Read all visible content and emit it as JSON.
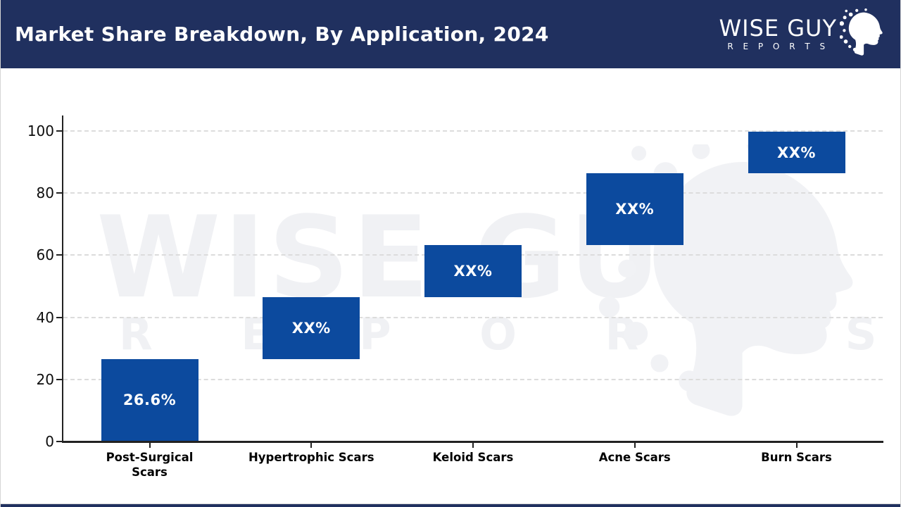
{
  "header": {
    "title": "Market Share Breakdown, By Application, 2024",
    "logo": {
      "brand_line1": "WISE GUY",
      "brand_line2": "R E P O R T S"
    }
  },
  "watermark": {
    "line1": "WISE GUY",
    "line2": "R E P O R T S"
  },
  "colors": {
    "header_bg": "#20305f",
    "bar": "#0c4a9e",
    "bar_label": "#ffffff",
    "gridline": "#dcdcdc",
    "axis": "#222222",
    "watermark": "#f0f1f4"
  },
  "chart_data": {
    "type": "bar",
    "subtype": "waterfall",
    "title": "Market Share Breakdown, By Application, 2024",
    "xlabel": "",
    "ylabel": "",
    "categories": [
      "Post-Surgical\nScars",
      "Hypertrophic Scars",
      "Keloid Scars",
      "Acne Scars",
      "Burn Scars"
    ],
    "segments": [
      {
        "category": "Post-Surgical Scars",
        "start": 0,
        "end": 26.6,
        "label": "26.6%"
      },
      {
        "category": "Hypertrophic Scars",
        "start": 26.6,
        "end": 46.4,
        "label": "XX%"
      },
      {
        "category": "Keloid Scars",
        "start": 46.4,
        "end": 63.2,
        "label": "XX%"
      },
      {
        "category": "Acne Scars",
        "start": 63.2,
        "end": 86.4,
        "label": "XX%"
      },
      {
        "category": "Burn Scars",
        "start": 86.4,
        "end": 99.7,
        "label": "XX%"
      }
    ],
    "y_ticks": [
      0,
      20,
      40,
      60,
      80,
      100
    ],
    "ylim": [
      0,
      105
    ],
    "grid": "horizontal-dashed",
    "legend": "none"
  }
}
